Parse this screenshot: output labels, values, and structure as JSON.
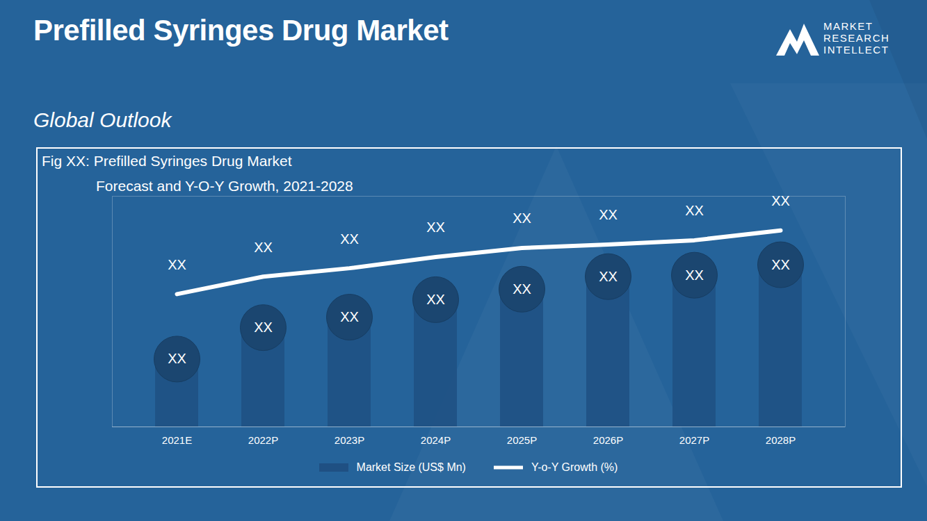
{
  "page": {
    "heading": "Prefilled Syringes Drug Market",
    "section": "Global Outlook",
    "logo": [
      "MARKET",
      "RESEARCH",
      "INTELLECT"
    ]
  },
  "chart_data": {
    "type": "bar",
    "title": "Fig XX:  Prefilled Syringes Drug Market",
    "subtitle": "Forecast and Y-O-Y Growth, 2021-2028",
    "categories": [
      "2021E",
      "2022P",
      "2023P",
      "2024P",
      "2025P",
      "2026P",
      "2027P",
      "2028P"
    ],
    "series": [
      {
        "name": "Market Size (US$ Mn)",
        "type": "bar",
        "color": "#1f5083",
        "values": [
          97,
          142,
          157,
          182,
          197,
          215,
          217,
          232
        ],
        "value_labels": [
          "XX",
          "XX",
          "XX",
          "XX",
          "XX",
          "XX",
          "XX",
          "XX"
        ]
      },
      {
        "name": "Y-o-Y Growth (%)",
        "type": "line",
        "color": "#ffffff",
        "values": [
          190,
          215,
          227,
          243,
          256,
          261,
          267,
          281
        ],
        "value_labels": [
          "XX",
          "XX",
          "XX",
          "XX",
          "XX",
          "XX",
          "XX",
          "XX"
        ]
      }
    ],
    "ylim": [
      0,
      330
    ],
    "tick_labels": "x",
    "data_labels": true,
    "legend": "bottom",
    "grid": false
  }
}
